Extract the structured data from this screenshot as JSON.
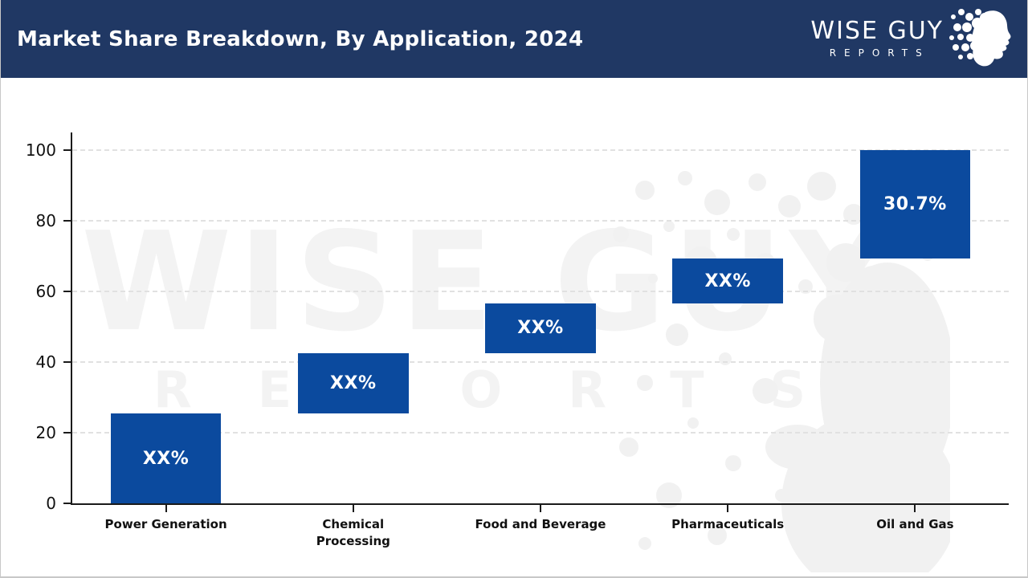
{
  "header": {
    "title": "Market Share Breakdown, By Application, 2024",
    "brand": {
      "line1": "WISE GUY",
      "line2": "REPORTS"
    }
  },
  "watermark": {
    "line1": "WISE GUY",
    "line2": "REPORTS"
  },
  "chart_data": {
    "type": "bar",
    "subtype": "floating-segment-waterfall",
    "title": "Market Share Breakdown, By Application, 2024",
    "categories": [
      "Power Generation",
      "Chemical\nProcessing",
      "Food and Beverage",
      "Pharmaceuticals",
      "Oil and Gas"
    ],
    "segments": [
      {
        "label": "Power Generation",
        "start": 0,
        "end": 25.4,
        "value_label": "XX%"
      },
      {
        "label": "Chemical\nProcessing",
        "start": 25.4,
        "end": 42.6,
        "value_label": "XX%"
      },
      {
        "label": "Food and Beverage",
        "start": 42.6,
        "end": 56.6,
        "value_label": "XX%"
      },
      {
        "label": "Pharmaceuticals",
        "start": 56.6,
        "end": 69.3,
        "value_label": "XX%"
      },
      {
        "label": "Oil and Gas",
        "start": 69.3,
        "end": 100,
        "value_label": "30.7%"
      }
    ],
    "xlabel": "",
    "ylabel": "",
    "yticks": [
      0,
      20,
      40,
      60,
      80,
      100
    ],
    "ylim": [
      0,
      105
    ],
    "grid": "horizontal-dashed",
    "legend": "none",
    "colors": {
      "bar": "#0b4a9e",
      "header_bg": "#203864",
      "grid": "#e1e1e1",
      "axis": "#1a1a1a",
      "watermark": "#f3f3f3"
    }
  }
}
